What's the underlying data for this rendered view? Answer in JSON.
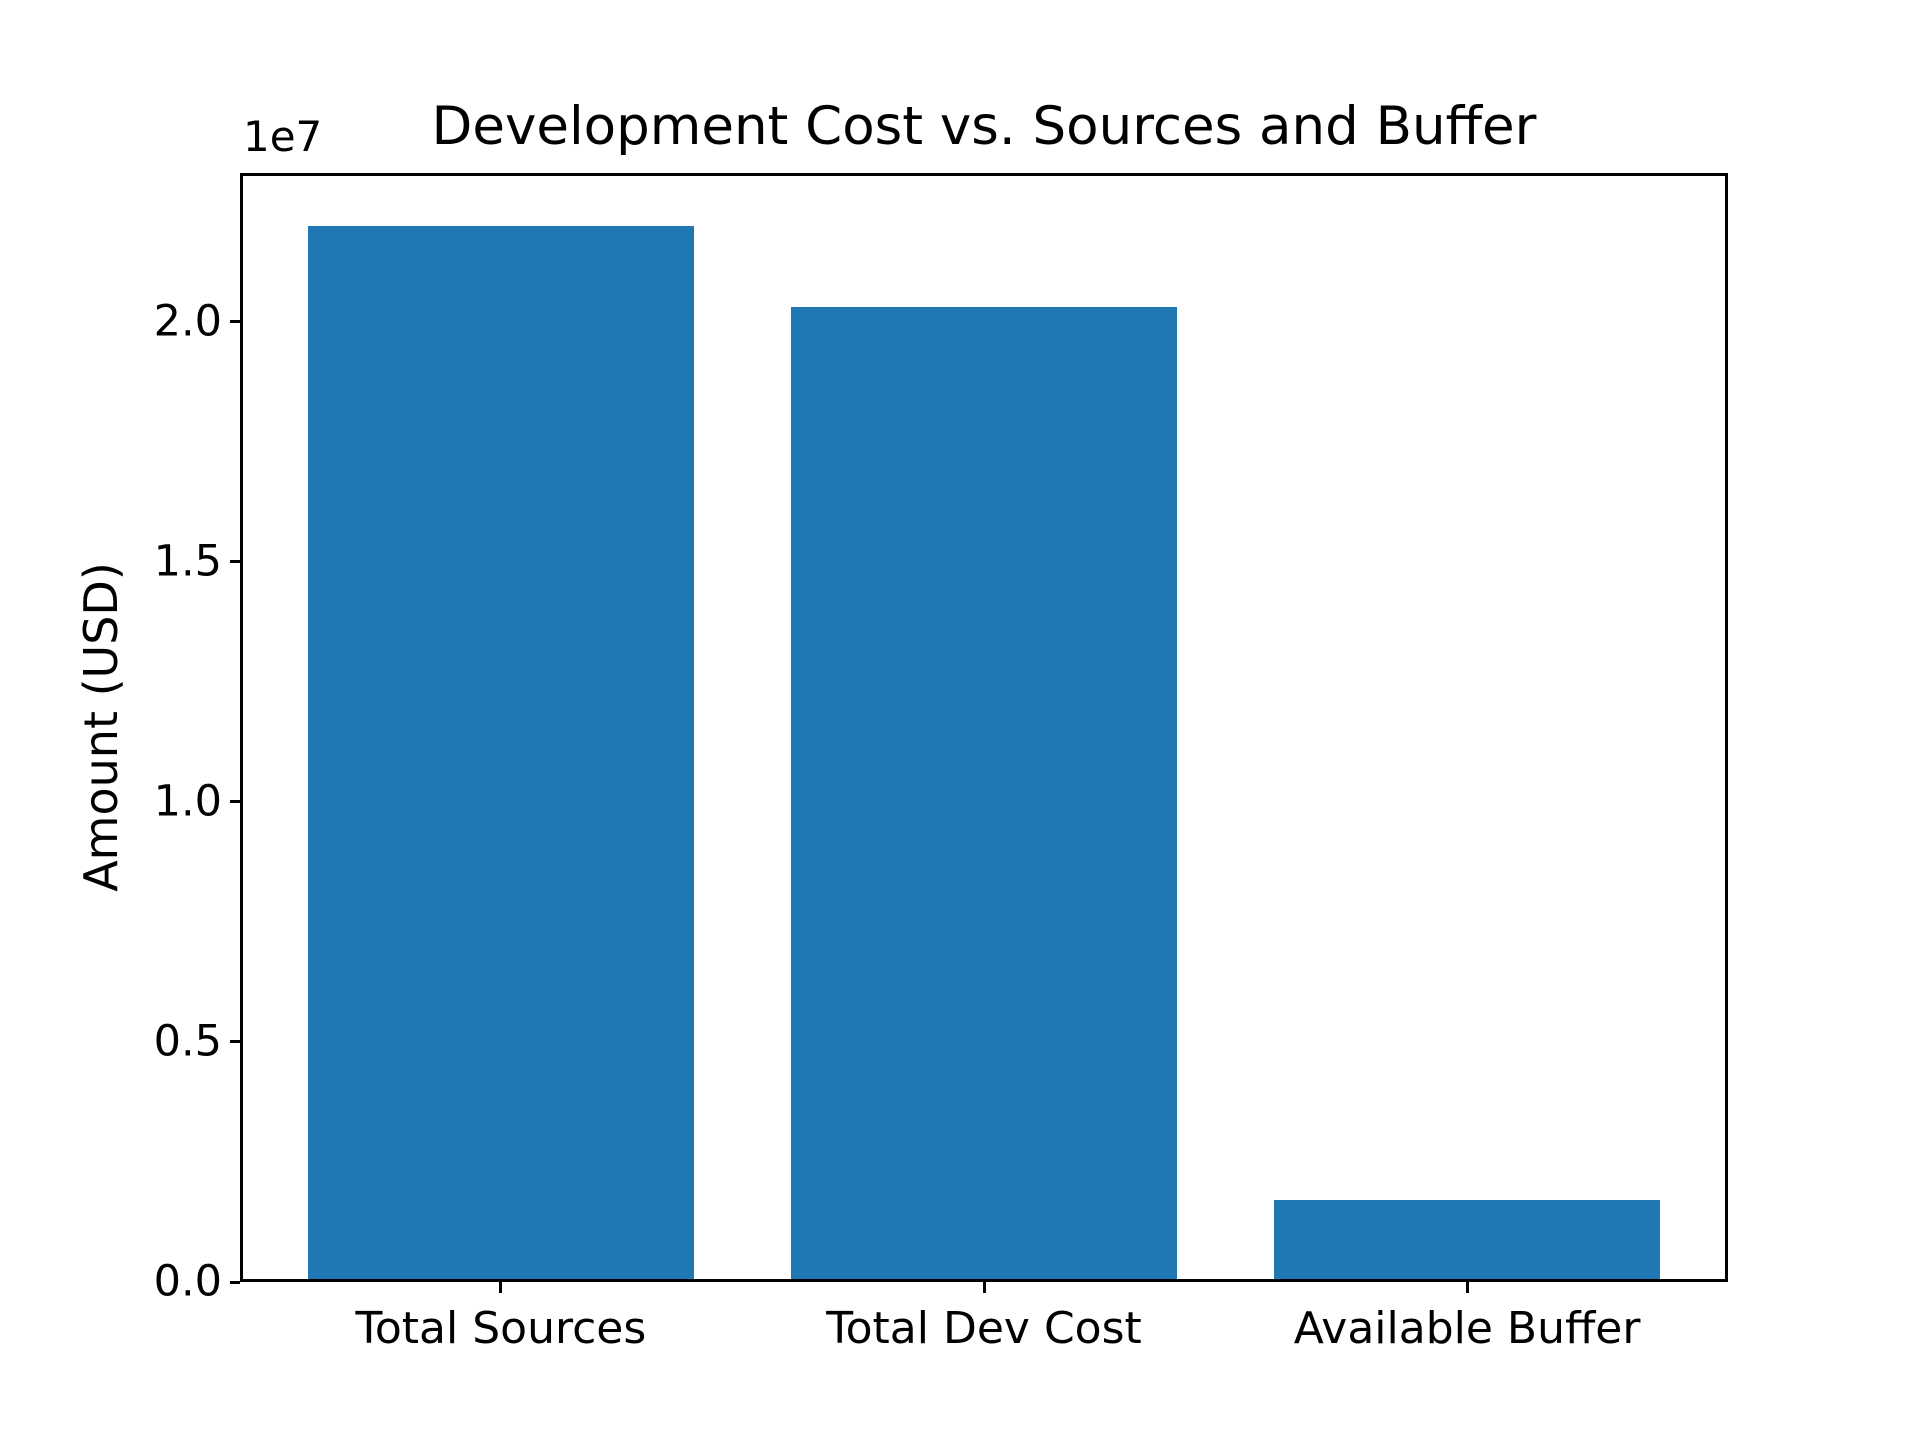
{
  "chart_data": {
    "type": "bar",
    "title": "Development Cost vs. Sources and Buffer",
    "xlabel": "",
    "ylabel": "Amount (USD)",
    "offset_label": "1e7",
    "categories": [
      "Total Sources",
      "Total Dev Cost",
      "Available Buffer"
    ],
    "values": [
      22000000,
      20300000,
      1700000
    ],
    "ylim": [
      0,
      23100000
    ],
    "yticks": [
      {
        "value": 0,
        "label": "0.0"
      },
      {
        "value": 5000000,
        "label": "0.5"
      },
      {
        "value": 10000000,
        "label": "1.0"
      },
      {
        "value": 15000000,
        "label": "1.5"
      },
      {
        "value": 20000000,
        "label": "2.0"
      }
    ],
    "bar_width_fraction": 0.8,
    "bar_color": "#1f77b4",
    "axis_color": "#000000",
    "background_color": "#ffffff",
    "grid": false,
    "legend": false
  }
}
